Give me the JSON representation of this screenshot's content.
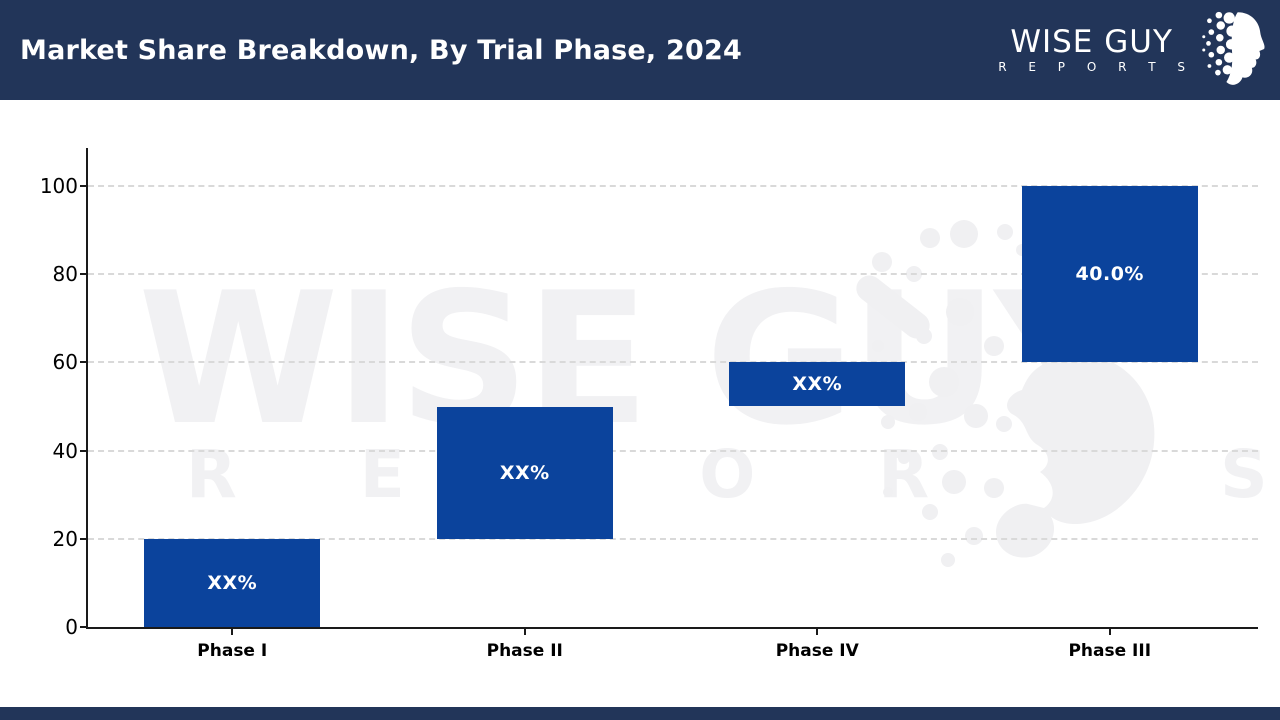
{
  "header": {
    "title": "Market Share Breakdown, By Trial Phase, 2024",
    "bg_color": "#223559"
  },
  "brand": {
    "line1": "WISE GUY",
    "line2": "R E P O R T S"
  },
  "watermark": {
    "line1": "WISE GUY",
    "line2": "R E P O R T S"
  },
  "chart_data": {
    "type": "bar",
    "subtype": "waterfall",
    "title": "Market Share Breakdown, By Trial Phase, 2024",
    "categories": [
      "Phase I",
      "Phase II",
      "Phase IV",
      "Phase III"
    ],
    "segments": [
      {
        "category": "Phase I",
        "from": 0,
        "to": 20,
        "label": "XX%"
      },
      {
        "category": "Phase II",
        "from": 20,
        "to": 50,
        "label": "XX%"
      },
      {
        "category": "Phase IV",
        "from": 50,
        "to": 60,
        "label": "XX%"
      },
      {
        "category": "Phase III",
        "from": 60,
        "to": 100,
        "label": "40.0%"
      }
    ],
    "ylim": [
      0,
      100
    ],
    "yticks": [
      0,
      20,
      40,
      60,
      80,
      100
    ],
    "bar_color": "#0b439c",
    "grid": "horizontal-dashed",
    "legend": "none",
    "axis_color": "#1a1a1a",
    "gridline_color": "#d9d9d9"
  }
}
